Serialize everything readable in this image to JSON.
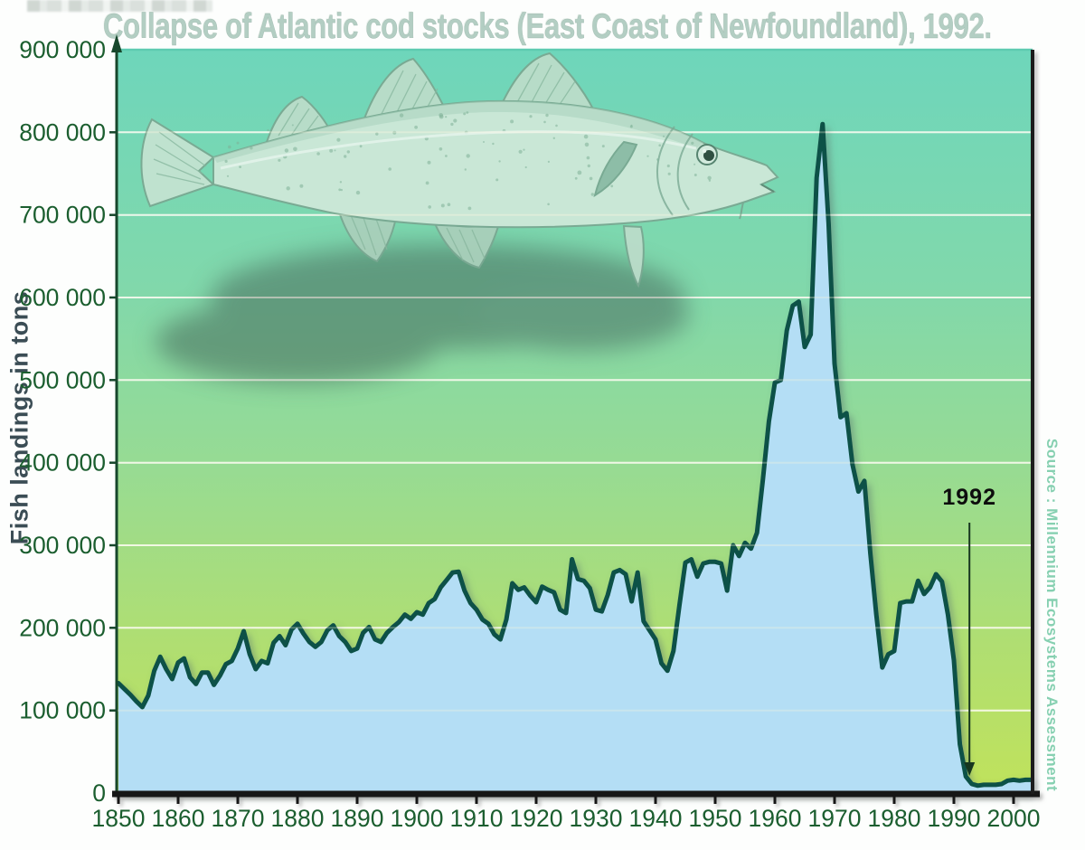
{
  "title": {
    "text": "Collapse of Atlantic cod stocks (East Coast of Newfoundland), 1992."
  },
  "chart_data": {
    "type": "area",
    "title": "Collapse of Atlantic cod stocks (East Coast of Newfoundland), 1992.",
    "xlabel": "",
    "ylabel": "Fish landings in tons",
    "unit": "tons",
    "ylim": [
      0,
      900000
    ],
    "x_range": [
      1850,
      2002
    ],
    "grid": true,
    "legend": "none",
    "source": "Source : Millennium Ecosystems Assessment",
    "annotation": {
      "label": "1992",
      "year": 1992,
      "meaning": "arrow marks collapse year at near-zero landings"
    },
    "x": [
      1850,
      1851,
      1852,
      1853,
      1854,
      1855,
      1856,
      1857,
      1858,
      1859,
      1860,
      1861,
      1862,
      1863,
      1864,
      1865,
      1866,
      1867,
      1868,
      1869,
      1870,
      1871,
      1872,
      1873,
      1874,
      1875,
      1876,
      1877,
      1878,
      1879,
      1880,
      1881,
      1882,
      1883,
      1884,
      1885,
      1886,
      1887,
      1888,
      1889,
      1890,
      1891,
      1892,
      1893,
      1894,
      1895,
      1896,
      1897,
      1898,
      1899,
      1900,
      1901,
      1902,
      1903,
      1904,
      1905,
      1906,
      1907,
      1908,
      1909,
      1910,
      1911,
      1912,
      1913,
      1914,
      1915,
      1916,
      1917,
      1918,
      1919,
      1920,
      1921,
      1922,
      1923,
      1924,
      1925,
      1926,
      1927,
      1928,
      1929,
      1930,
      1931,
      1932,
      1933,
      1934,
      1935,
      1936,
      1937,
      1938,
      1939,
      1940,
      1941,
      1942,
      1943,
      1944,
      1945,
      1946,
      1947,
      1948,
      1949,
      1950,
      1951,
      1952,
      1953,
      1954,
      1955,
      1956,
      1957,
      1958,
      1959,
      1960,
      1961,
      1962,
      1963,
      1964,
      1965,
      1966,
      1967,
      1968,
      1969,
      1970,
      1971,
      1972,
      1973,
      1974,
      1975,
      1976,
      1977,
      1978,
      1979,
      1980,
      1981,
      1982,
      1983,
      1984,
      1985,
      1986,
      1987,
      1988,
      1989,
      1990,
      1991,
      1992,
      1993,
      1994,
      1995,
      1996,
      1997,
      1998,
      1999,
      2000,
      2001,
      2002
    ],
    "values": [
      133000,
      126000,
      119000,
      111000,
      104000,
      118000,
      148000,
      165000,
      150000,
      138000,
      158000,
      163000,
      140000,
      132000,
      146000,
      146000,
      131000,
      142000,
      156000,
      160000,
      175000,
      196000,
      168000,
      150000,
      160000,
      157000,
      182000,
      190000,
      179000,
      198000,
      205000,
      193000,
      183000,
      177000,
      183000,
      197000,
      203000,
      190000,
      183000,
      172000,
      175000,
      194000,
      201000,
      186000,
      183000,
      194000,
      201000,
      207000,
      216000,
      211000,
      219000,
      216000,
      230000,
      235000,
      249000,
      258000,
      267000,
      268000,
      245000,
      230000,
      222000,
      210000,
      205000,
      192000,
      186000,
      210000,
      254000,
      246000,
      249000,
      239000,
      231000,
      250000,
      246000,
      243000,
      222000,
      218000,
      283000,
      259000,
      257000,
      248000,
      222000,
      220000,
      240000,
      267000,
      270000,
      265000,
      232000,
      267000,
      208000,
      197000,
      186000,
      157000,
      148000,
      172000,
      227000,
      279000,
      283000,
      262000,
      278000,
      280000,
      280000,
      278000,
      245000,
      300000,
      287000,
      303000,
      296000,
      315000,
      380000,
      450000,
      497000,
      500000,
      560000,
      590000,
      595000,
      540000,
      555000,
      745000,
      810000,
      690000,
      520000,
      455000,
      460000,
      398000,
      365000,
      378000,
      290000,
      216000,
      152000,
      168000,
      172000,
      230000,
      232000,
      232000,
      257000,
      241000,
      249000,
      265000,
      256000,
      216000,
      161000,
      59000,
      20000,
      11000,
      9000,
      10000,
      10000,
      10000,
      11000,
      15000,
      16000,
      15000,
      16000
    ],
    "y_ticks": [
      {
        "value": 0,
        "label": "0"
      },
      {
        "value": 100000,
        "label": "100 000"
      },
      {
        "value": 200000,
        "label": "200 000"
      },
      {
        "value": 300000,
        "label": "300 000"
      },
      {
        "value": 400000,
        "label": "400 000"
      },
      {
        "value": 500000,
        "label": "500 000"
      },
      {
        "value": 600000,
        "label": "600 000"
      },
      {
        "value": 700000,
        "label": "700 000"
      },
      {
        "value": 800000,
        "label": "800 000"
      },
      {
        "value": 900000,
        "label": "900 000"
      }
    ],
    "x_ticks": [
      {
        "value": 1850,
        "label": "1850"
      },
      {
        "value": 1860,
        "label": "1860"
      },
      {
        "value": 1870,
        "label": "1870"
      },
      {
        "value": 1880,
        "label": "1880"
      },
      {
        "value": 1890,
        "label": "1890"
      },
      {
        "value": 1900,
        "label": "1900"
      },
      {
        "value": 1910,
        "label": "1910"
      },
      {
        "value": 1920,
        "label": "1920"
      },
      {
        "value": 1930,
        "label": "1930"
      },
      {
        "value": 1940,
        "label": "1940"
      },
      {
        "value": 1950,
        "label": "1950"
      },
      {
        "value": 1960,
        "label": "1960"
      },
      {
        "value": 1970,
        "label": "1970"
      },
      {
        "value": 1980,
        "label": "1980"
      },
      {
        "value": 1990,
        "label": "1990"
      },
      {
        "value": 2000,
        "label": "2000"
      }
    ],
    "colors": {
      "background_top": "#6ed6bb",
      "background_mid": "#97db93",
      "background_bottom": "#c0e25b",
      "area_fill": "#b4def5",
      "line": "#0b5146",
      "axis_text": "#1b5e2f",
      "y_axis_title": "#3b4d55",
      "title": "#b3cec3",
      "source_text": "#86d0b1",
      "annotation_text": "#0d0d0d",
      "gridline": "#ffffff"
    },
    "decor": [
      "atlantic-cod-engraving-illustration",
      "soft-shadow-under-fish"
    ]
  }
}
